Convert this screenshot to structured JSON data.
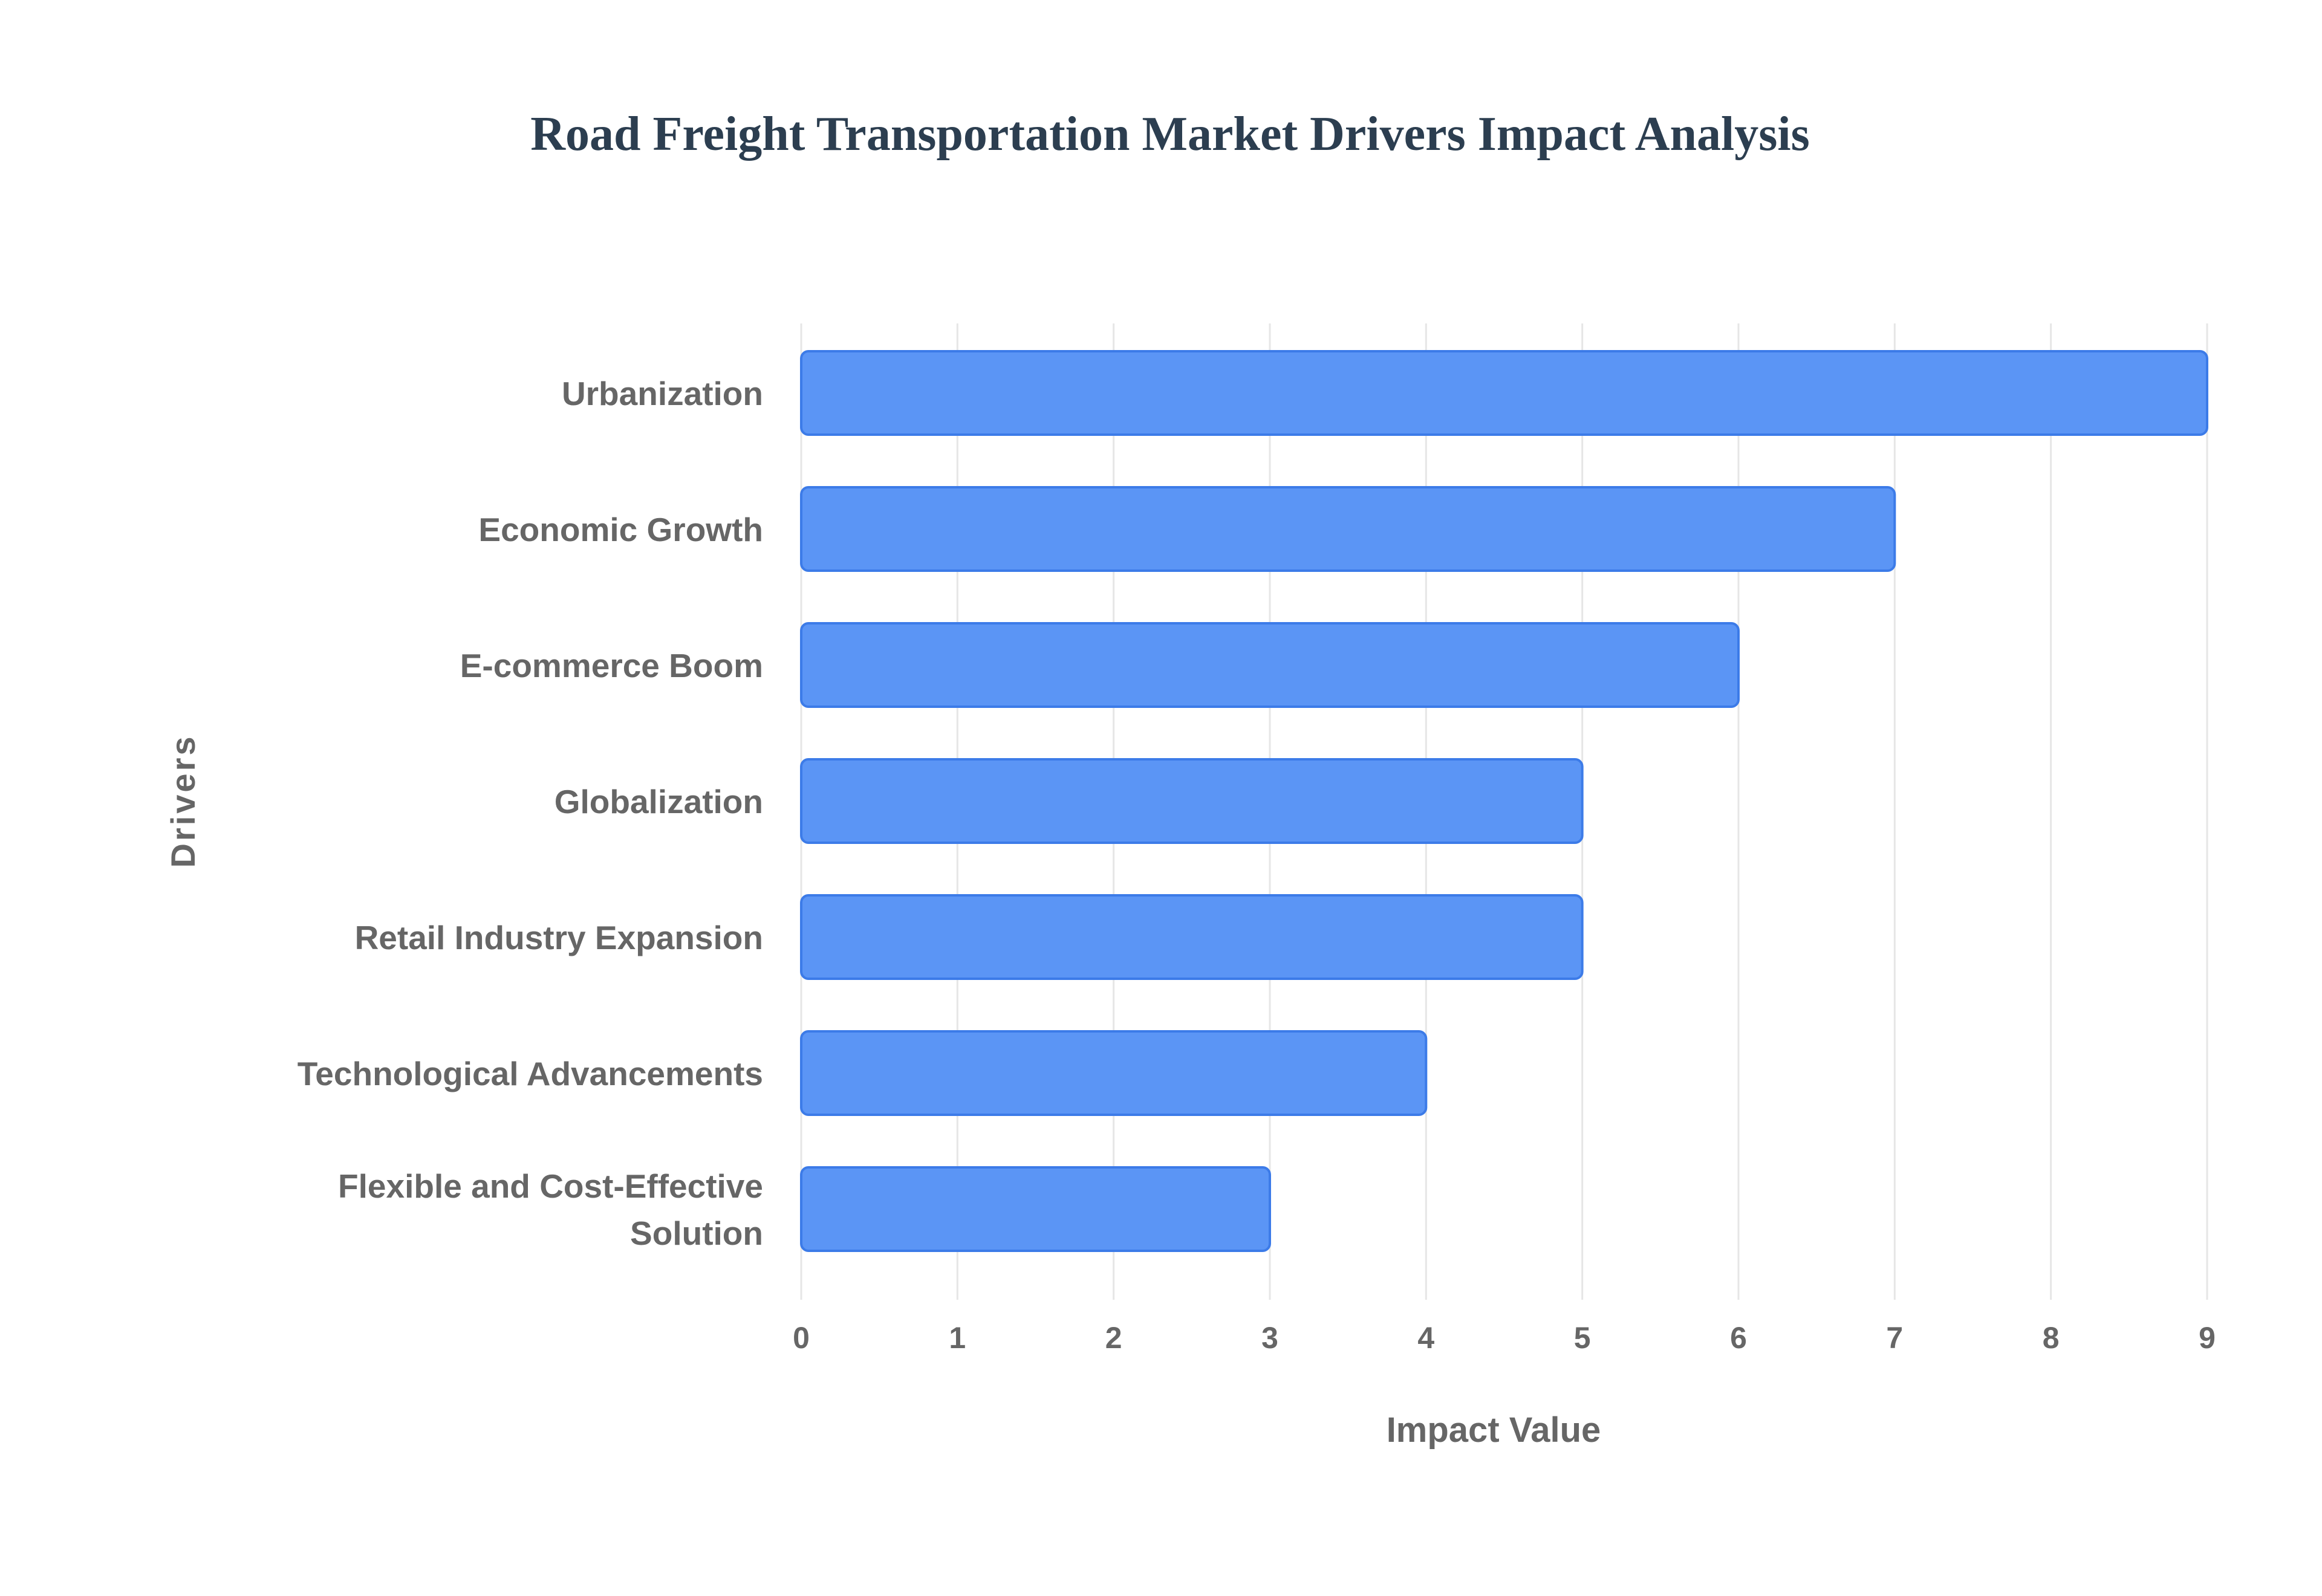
{
  "chart_data": {
    "type": "bar",
    "orientation": "horizontal",
    "title": "Road Freight Transportation Market Drivers Impact Analysis",
    "xlabel": "Impact Value",
    "ylabel": "Drivers",
    "categories": [
      "Urbanization",
      "Economic Growth",
      "E-commerce Boom",
      "Globalization",
      "Retail Industry Expansion",
      "Technological Advancements",
      "Flexible and Cost-Effective Solution"
    ],
    "category_lines": [
      [
        "Urbanization"
      ],
      [
        "Economic Growth"
      ],
      [
        "E-commerce Boom"
      ],
      [
        "Globalization"
      ],
      [
        "Retail Industry Expansion"
      ],
      [
        "Technological Advancements"
      ],
      [
        "Flexible and Cost-Effective",
        "Solution"
      ]
    ],
    "values": [
      9,
      7,
      6,
      5,
      5,
      4,
      3
    ],
    "xlim": [
      0,
      9
    ],
    "x_ticks": [
      0,
      1,
      2,
      3,
      4,
      5,
      6,
      7,
      8,
      9
    ],
    "grid": true,
    "legend": "none",
    "colors": {
      "bar_fill": "#5b95f5",
      "bar_stroke": "#3c7be8",
      "title": "#2c3e50",
      "text": "#666666",
      "grid": "#e6e6e6"
    }
  }
}
